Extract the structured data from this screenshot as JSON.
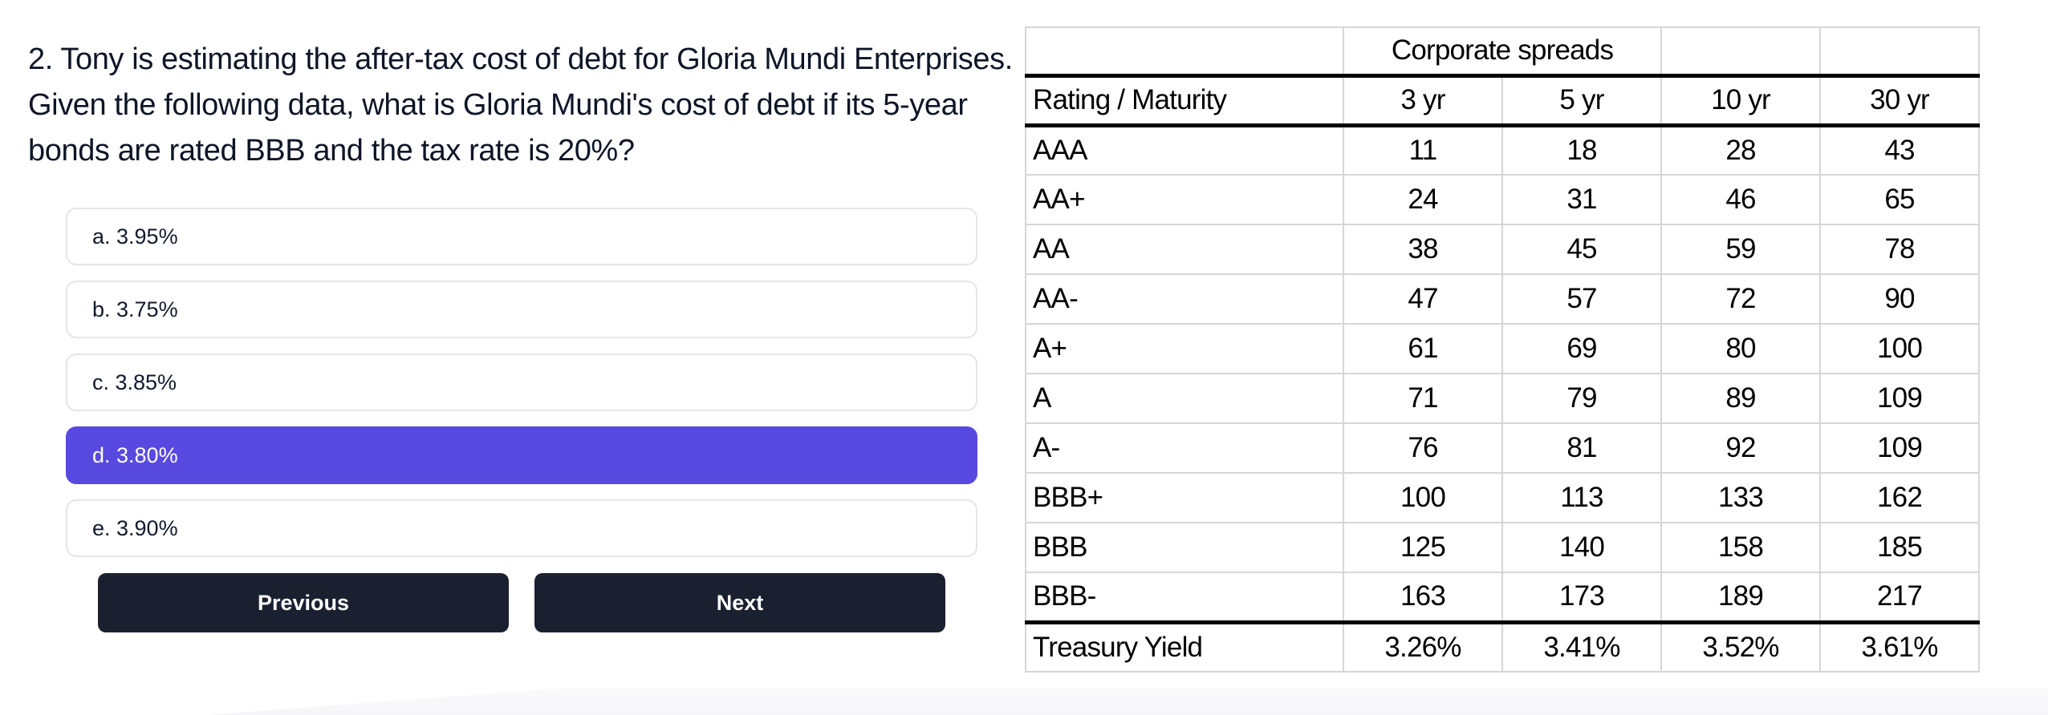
{
  "question": {
    "text": "2. Tony is estimating the after-tax cost of debt for Gloria Mundi Enterprises. Given the following data, what is Gloria Mundi's cost of debt if its 5-year bonds are rated BBB and the tax rate is 20%?"
  },
  "options": [
    {
      "id": "a",
      "label": "a. 3.95%",
      "selected": false
    },
    {
      "id": "b",
      "label": "b. 3.75%",
      "selected": false
    },
    {
      "id": "c",
      "label": "c. 3.85%",
      "selected": false
    },
    {
      "id": "d",
      "label": "d. 3.80%",
      "selected": true
    },
    {
      "id": "e",
      "label": "e. 3.90%",
      "selected": false
    }
  ],
  "nav": {
    "previous_label": "Previous",
    "next_label": "Next"
  },
  "table": {
    "title": "Corporate spreads",
    "corner_header": "Rating / Maturity",
    "maturity_headers": [
      "3 yr",
      "5 yr",
      "10 yr",
      "30 yr"
    ],
    "rows": [
      {
        "rating": "AAA",
        "values": [
          "11",
          "18",
          "28",
          "43"
        ]
      },
      {
        "rating": "AA+",
        "values": [
          "24",
          "31",
          "46",
          "65"
        ]
      },
      {
        "rating": "AA",
        "values": [
          "38",
          "45",
          "59",
          "78"
        ]
      },
      {
        "rating": "AA-",
        "values": [
          "47",
          "57",
          "72",
          "90"
        ]
      },
      {
        "rating": "A+",
        "values": [
          "61",
          "69",
          "80",
          "100"
        ]
      },
      {
        "rating": "A",
        "values": [
          "71",
          "79",
          "89",
          "109"
        ]
      },
      {
        "rating": "A-",
        "values": [
          "76",
          "81",
          "92",
          "109"
        ]
      },
      {
        "rating": "BBB+",
        "values": [
          "100",
          "113",
          "133",
          "162"
        ]
      },
      {
        "rating": "BBB",
        "values": [
          "125",
          "140",
          "158",
          "185"
        ]
      },
      {
        "rating": "BBB-",
        "values": [
          "163",
          "173",
          "189",
          "217"
        ]
      }
    ],
    "footer": {
      "label": "Treasury Yield",
      "values": [
        "3.26%",
        "3.41%",
        "3.52%",
        "3.61%"
      ]
    }
  },
  "colors": {
    "selected_option_bg": "#5849e0",
    "nav_button_bg": "#1a2030",
    "text_dark": "#0e1526",
    "grid_line": "#d6d6d6",
    "thick_line": "#050505",
    "option_border": "#e5e5ea"
  }
}
